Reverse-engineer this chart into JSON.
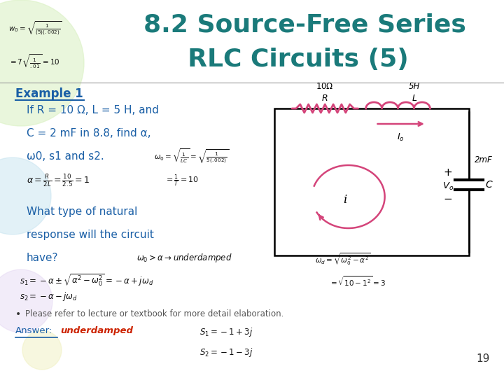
{
  "bg_color": "#ffffff",
  "title_color": "#1a7a7a",
  "title_fontsize": 26,
  "example_color": "#1a5fa6",
  "body_text_color": "#1a5fa6",
  "hw_color": "#111111",
  "pink_color": "#d4447a",
  "bullet_text": "Please refer to lecture or textbook for more detail elaboration.",
  "answer_label": "Answer:",
  "answer_label_color": "#1a5fa6",
  "answer_value": "underdamped",
  "answer_value_color": "#cc2200",
  "page_number": "19"
}
